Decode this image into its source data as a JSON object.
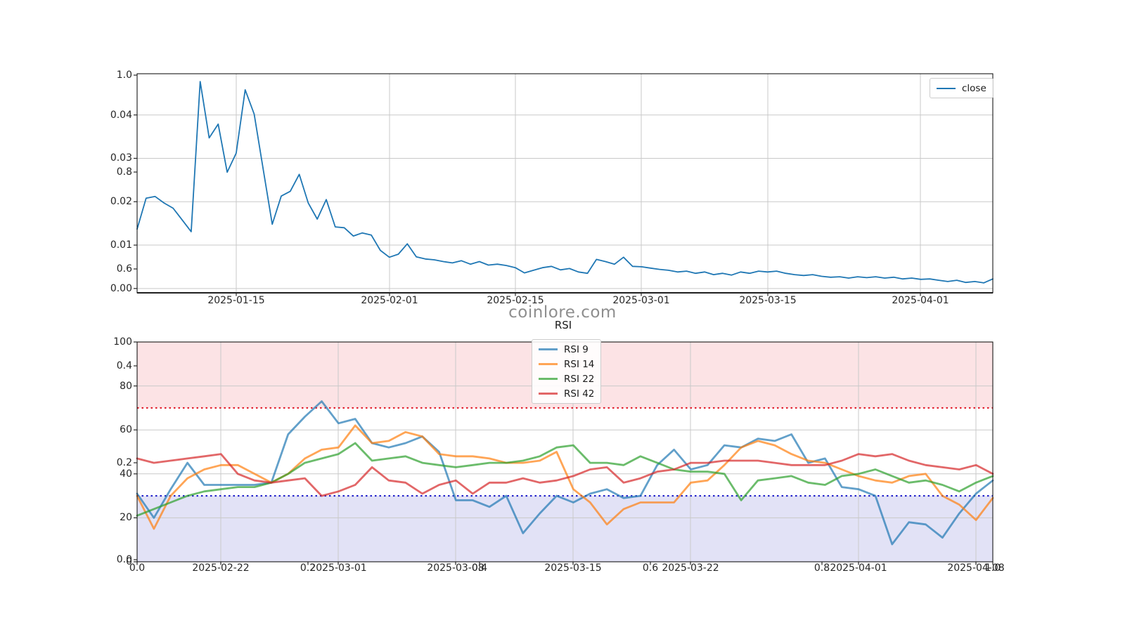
{
  "watermark": "coinlore.com",
  "background_axis": {
    "y_tick_labels": [
      "1.0",
      "0.8",
      "0.6",
      "0.4",
      "0.2",
      "0.0"
    ],
    "x_tick_labels": [
      "0.0",
      "0.2",
      "0.4",
      "0.6",
      "0.8",
      "1.0"
    ]
  },
  "chart_data": [
    {
      "type": "line",
      "name": "price-pane",
      "title": "",
      "legend": [
        "close"
      ],
      "legend_position": "upper right",
      "grid": true,
      "y_tick_labels": [
        "0.00",
        "0.01",
        "0.02",
        "0.03",
        "0.04"
      ],
      "y_ticks": [
        0.0,
        0.01,
        0.02,
        0.03,
        0.04
      ],
      "ylim": [
        -0.001,
        0.0495
      ],
      "x_tick_labels": [
        "2025-01-15",
        "2025-02-01",
        "2025-02-15",
        "2025-03-01",
        "2025-03-15",
        "2025-04-01"
      ],
      "series": [
        {
          "name": "close",
          "color": "#1f77b4",
          "values": [
            0.0137,
            0.0208,
            0.0212,
            0.0197,
            0.0185,
            0.0158,
            0.0131,
            0.0477,
            0.0347,
            0.0379,
            0.0268,
            0.0312,
            0.0458,
            0.0402,
            0.0275,
            0.0148,
            0.0213,
            0.0224,
            0.0263,
            0.0197,
            0.016,
            0.0205,
            0.0142,
            0.014,
            0.0121,
            0.0128,
            0.0123,
            0.0088,
            0.0072,
            0.0079,
            0.0103,
            0.0073,
            0.0068,
            0.0066,
            0.0062,
            0.0059,
            0.0064,
            0.0056,
            0.0062,
            0.0054,
            0.0056,
            0.0053,
            0.0048,
            0.0036,
            0.0042,
            0.0048,
            0.0051,
            0.0043,
            0.0046,
            0.0038,
            0.0035,
            0.0067,
            0.0062,
            0.0056,
            0.0072,
            0.0051,
            0.005,
            0.0047,
            0.0044,
            0.0042,
            0.0038,
            0.004,
            0.0035,
            0.0038,
            0.0032,
            0.0035,
            0.0031,
            0.0038,
            0.0035,
            0.004,
            0.0038,
            0.004,
            0.0035,
            0.0032,
            0.003,
            0.0032,
            0.0028,
            0.0026,
            0.0027,
            0.0024,
            0.0027,
            0.0025,
            0.0027,
            0.0024,
            0.0026,
            0.0022,
            0.0024,
            0.0021,
            0.0022,
            0.0019,
            0.0016,
            0.0019,
            0.0014,
            0.0016,
            0.0013,
            0.0022
          ]
        }
      ]
    },
    {
      "type": "line",
      "name": "rsi-pane",
      "title": "RSI",
      "legend": [
        "RSI 9",
        "RSI 14",
        "RSI 22",
        "RSI 42"
      ],
      "legend_position": "upper center-left",
      "grid": true,
      "y_tick_labels": [
        "100",
        "80",
        "60",
        "40",
        "20",
        "0"
      ],
      "y_ticks": [
        100,
        80,
        60,
        40,
        20,
        0
      ],
      "ylim": [
        0,
        100
      ],
      "x_tick_labels": [
        "2025-02-22",
        "2025-03-01",
        "2025-03-08",
        "2025-03-15",
        "2025-03-22",
        "2025-04-01",
        "2025-04-08"
      ],
      "overbought_level": 70,
      "oversold_level": 30,
      "overbought_band_color": "#fce3e5",
      "oversold_band_color": "#e2e2f6",
      "overbought_line_color": "#e01322",
      "oversold_line_color": "#1515c8",
      "series": [
        {
          "name": "RSI 9",
          "color": "#1f77b4",
          "values": [
            31,
            20,
            33,
            45,
            35,
            35,
            35,
            35,
            36,
            58,
            66,
            73,
            63,
            65,
            54,
            52,
            54,
            57,
            50,
            28,
            28,
            25,
            30,
            13,
            22,
            30,
            27,
            31,
            33,
            29,
            30,
            44,
            51,
            42,
            44,
            53,
            52,
            56,
            55,
            58,
            45,
            47,
            34,
            33,
            30,
            8,
            18,
            17,
            11,
            22,
            31,
            37
          ]
        },
        {
          "name": "RSI 14",
          "color": "#ff7f0e",
          "values": [
            30,
            15,
            30,
            38,
            42,
            44,
            44,
            40,
            36,
            40,
            47,
            51,
            52,
            62,
            54,
            55,
            59,
            57,
            49,
            48,
            48,
            47,
            45,
            45,
            46,
            50,
            33,
            27,
            17,
            24,
            27,
            27,
            27,
            36,
            37,
            44,
            52,
            55,
            53,
            49,
            46,
            45,
            42,
            39,
            37,
            36,
            39,
            40,
            30,
            26,
            19,
            29
          ]
        },
        {
          "name": "RSI 22",
          "color": "#2ca02c",
          "values": [
            21,
            24,
            27,
            30,
            32,
            33,
            34,
            34,
            36,
            40,
            45,
            47,
            49,
            54,
            46,
            47,
            48,
            45,
            44,
            43,
            44,
            45,
            45,
            46,
            48,
            52,
            53,
            45,
            45,
            44,
            48,
            45,
            42,
            41,
            41,
            40,
            28,
            37,
            38,
            39,
            36,
            35,
            39,
            40,
            42,
            39,
            36,
            37,
            35,
            32,
            36,
            39
          ]
        },
        {
          "name": "RSI 42",
          "color": "#d62728",
          "values": [
            47,
            45,
            46,
            47,
            48,
            49,
            40,
            37,
            36,
            37,
            38,
            30,
            32,
            35,
            43,
            37,
            36,
            31,
            35,
            37,
            31,
            36,
            36,
            38,
            36,
            37,
            39,
            42,
            43,
            36,
            38,
            41,
            42,
            45,
            45,
            46,
            46,
            46,
            45,
            44,
            44,
            44,
            46,
            49,
            48,
            49,
            46,
            44,
            43,
            42,
            44,
            40
          ]
        }
      ]
    }
  ],
  "colors": {
    "grid": "#c9c9c9",
    "spine": "#000000",
    "tick_text": "#262626",
    "watermark": "#8e8e8e"
  }
}
